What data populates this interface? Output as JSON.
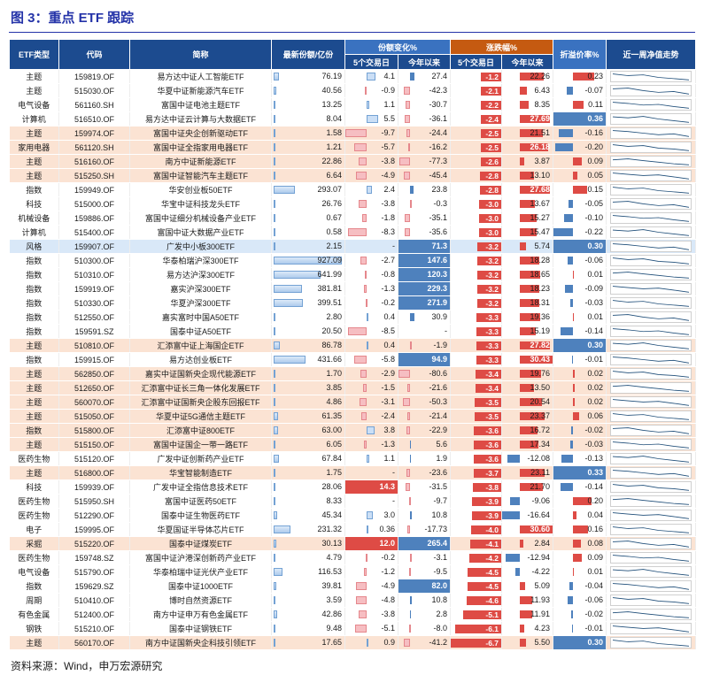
{
  "title": "图 3：重点 ETF 跟踪",
  "source": "资料来源：Wind，申万宏源研究",
  "colors": {
    "title_blue": "#2433A8",
    "header_navy": "#1C4B8F",
    "share_change_band_blue": "#3A72C0",
    "price_change_band_orange": "#C55A11",
    "row_highlight_peach": "#FBE3D3",
    "row_highlight_blue": "#D9E8F8",
    "bar_positive_light_blue": "#CBDFF6",
    "bar_negative_pink": "#F6BEC2",
    "bar_up_red": "#DE4B45",
    "bar_down_blue": "#4E81BD",
    "sparkline_navy": "#1F4E79"
  },
  "chart_data": {
    "type": "table",
    "title": "重点 ETF 跟踪",
    "headers": {
      "etf_type": "ETF类型",
      "code": "代码",
      "short_name": "简称",
      "latest_shares": "最新份额/亿份",
      "share_change_group": "份额变化%",
      "price_change_group": "涨跌幅%",
      "premium_discount": "折溢价率%",
      "weekly_nav_trend": "近一周净值走势",
      "sub_5d": "5个交易日",
      "sub_ytd": "今年以来"
    },
    "rows": [
      {
        "type": "主题",
        "code": "159819.OF",
        "name": "易方达中证人工智能ETF",
        "shares": "76.19",
        "sc5": "4.1",
        "scy": "27.4",
        "pc5": "-1.2",
        "pcy": "22.26",
        "prem": "0.23",
        "hl": "",
        "trend": [
          5,
          4.3,
          4.6,
          3.6,
          3.1,
          2.6
        ]
      },
      {
        "type": "主题",
        "code": "515030.OF",
        "name": "华夏中证新能源汽车ETF",
        "shares": "40.56",
        "sc5": "-0.9",
        "scy": "-42.3",
        "pc5": "-2.1",
        "pcy": "6.43",
        "prem": "-0.07",
        "hl": "",
        "trend": [
          4.7,
          5,
          4.1,
          3.5,
          3.8,
          2.9
        ]
      },
      {
        "type": "电气设备",
        "code": "561160.SH",
        "name": "富国中证电池主题ETF",
        "shares": "13.25",
        "sc5": "1.1",
        "scy": "-30.7",
        "pc5": "-2.2",
        "pcy": "8.35",
        "prem": "0.11",
        "hl": "",
        "trend": [
          5,
          4.5,
          3.8,
          4.1,
          3.2,
          2.5
        ]
      },
      {
        "type": "计算机",
        "code": "516510.OF",
        "name": "易方达中证云计算与大数据ETF",
        "shares": "8.04",
        "sc5": "5.5",
        "scy": "-36.1",
        "pc5": "-2.4",
        "pcy": "27.69",
        "prem": "0.36",
        "hl": "",
        "trend": [
          4.6,
          4.2,
          4.8,
          3.7,
          3,
          2.3
        ]
      },
      {
        "type": "主题",
        "code": "159974.OF",
        "name": "富国中证央企创新驱动ETF",
        "shares": "1.58",
        "sc5": "-9.7",
        "scy": "-24.4",
        "pc5": "-2.5",
        "pcy": "21.51",
        "prem": "-0.16",
        "hl": "peach",
        "trend": [
          5,
          4.6,
          4,
          3.4,
          3.7,
          2.7
        ]
      },
      {
        "type": "家用电器",
        "code": "561120.SH",
        "name": "富国中证全指家用电器ETF",
        "shares": "1.21",
        "sc5": "-5.7",
        "scy": "-16.2",
        "pc5": "-2.5",
        "pcy": "26.18",
        "prem": "-0.20",
        "hl": "peach",
        "trend": [
          4.8,
          4.1,
          4.4,
          3.3,
          2.9,
          2.2
        ]
      },
      {
        "type": "主题",
        "code": "516160.OF",
        "name": "南方中证新能源ETF",
        "shares": "22.86",
        "sc5": "-3.8",
        "scy": "-77.3",
        "pc5": "-2.6",
        "pcy": "3.87",
        "prem": "0.09",
        "hl": "peach",
        "trend": [
          4.5,
          4.9,
          4.2,
          3.6,
          3,
          2.6
        ]
      },
      {
        "type": "主题",
        "code": "515250.SH",
        "name": "富国中证智能汽车主题ETF",
        "shares": "6.64",
        "sc5": "-4.9",
        "scy": "-45.4",
        "pc5": "-2.8",
        "pcy": "13.10",
        "prem": "0.05",
        "hl": "peach",
        "trend": [
          5,
          4.4,
          3.9,
          4.2,
          3.3,
          2.4
        ]
      },
      {
        "type": "指数",
        "code": "159949.OF",
        "name": "华安创业板50ETF",
        "shares": "293.07",
        "sc5": "2.4",
        "scy": "23.8",
        "pc5": "-2.8",
        "pcy": "27.68",
        "prem": "0.15",
        "hl": "",
        "trend": [
          5,
          4.3,
          4.6,
          3.6,
          3.1,
          2.6
        ]
      },
      {
        "type": "科技",
        "code": "515000.OF",
        "name": "华宝中证科技龙头ETF",
        "shares": "26.76",
        "sc5": "-3.8",
        "scy": "-0.3",
        "pc5": "-3.0",
        "pcy": "13.67",
        "prem": "-0.05",
        "hl": "",
        "trend": [
          4.7,
          5,
          4.1,
          3.5,
          3.8,
          2.9
        ]
      },
      {
        "type": "机械设备",
        "code": "159886.OF",
        "name": "富国中证细分机械设备产业ETF",
        "shares": "0.67",
        "sc5": "-1.8",
        "scy": "-35.1",
        "pc5": "-3.0",
        "pcy": "15.27",
        "prem": "-0.10",
        "hl": "",
        "trend": [
          5,
          4.5,
          3.8,
          4.1,
          3.2,
          2.5
        ]
      },
      {
        "type": "计算机",
        "code": "515400.OF",
        "name": "富国中证大数据产业ETF",
        "shares": "0.58",
        "sc5": "-8.3",
        "scy": "-35.6",
        "pc5": "-3.0",
        "pcy": "15.47",
        "prem": "-0.22",
        "hl": "",
        "trend": [
          4.6,
          4.2,
          4.8,
          3.7,
          3,
          2.3
        ]
      },
      {
        "type": "风格",
        "code": "159907.OF",
        "name": "广发中小板300ETF",
        "shares": "2.15",
        "sc5": "-",
        "scy": "71.3",
        "pc5": "-3.2",
        "pcy": "5.74",
        "prem": "0.30",
        "hl": "blue",
        "trend": [
          5,
          4.6,
          4,
          3.4,
          3.7,
          2.7
        ]
      },
      {
        "type": "指数",
        "code": "510300.OF",
        "name": "华泰柏瑞沪深300ETF",
        "shares": "927.09",
        "sc5": "-2.7",
        "scy": "147.6",
        "pc5": "-3.2",
        "pcy": "18.28",
        "prem": "-0.06",
        "hl": "",
        "trend": [
          4.8,
          4.1,
          4.4,
          3.3,
          2.9,
          2.2
        ]
      },
      {
        "type": "指数",
        "code": "510310.OF",
        "name": "易方达沪深300ETF",
        "shares": "641.99",
        "sc5": "-0.8",
        "scy": "120.3",
        "pc5": "-3.2",
        "pcy": "18.65",
        "prem": "0.01",
        "hl": "",
        "trend": [
          4.5,
          4.9,
          4.2,
          3.6,
          3,
          2.6
        ]
      },
      {
        "type": "指数",
        "code": "159919.OF",
        "name": "嘉实沪深300ETF",
        "shares": "381.81",
        "sc5": "-1.3",
        "scy": "229.3",
        "pc5": "-3.2",
        "pcy": "18.23",
        "prem": "-0.09",
        "hl": "",
        "trend": [
          5,
          4.4,
          3.9,
          4.2,
          3.3,
          2.4
        ]
      },
      {
        "type": "指数",
        "code": "510330.OF",
        "name": "华夏沪深300ETF",
        "shares": "399.51",
        "sc5": "-0.2",
        "scy": "271.9",
        "pc5": "-3.2",
        "pcy": "18.31",
        "prem": "-0.03",
        "hl": "",
        "trend": [
          5,
          4.3,
          4.6,
          3.6,
          3.1,
          2.6
        ]
      },
      {
        "type": "指数",
        "code": "512550.OF",
        "name": "嘉实富时中国A50ETF",
        "shares": "2.80",
        "sc5": "0.4",
        "scy": "30.9",
        "pc5": "-3.3",
        "pcy": "19.36",
        "prem": "0.01",
        "hl": "",
        "trend": [
          4.7,
          5,
          4.1,
          3.5,
          3.8,
          2.9
        ]
      },
      {
        "type": "指数",
        "code": "159591.SZ",
        "name": "国泰中证A50ETF",
        "shares": "20.50",
        "sc5": "-8.5",
        "scy": "-",
        "pc5": "-3.3",
        "pcy": "15.19",
        "prem": "-0.14",
        "hl": "",
        "trend": [
          5,
          4.5,
          3.8,
          4.1,
          3.2,
          2.5
        ]
      },
      {
        "type": "主题",
        "code": "510810.OF",
        "name": "汇添富中证上海国企ETF",
        "shares": "86.78",
        "sc5": "0.4",
        "scy": "-1.9",
        "pc5": "-3.3",
        "pcy": "27.82",
        "prem": "0.30",
        "hl": "peach",
        "trend": [
          4.6,
          4.2,
          4.8,
          3.7,
          3,
          2.3
        ]
      },
      {
        "type": "指数",
        "code": "159915.OF",
        "name": "易方达创业板ETF",
        "shares": "431.66",
        "sc5": "-5.8",
        "scy": "94.9",
        "pc5": "-3.3",
        "pcy": "30.43",
        "prem": "-0.01",
        "hl": "",
        "trend": [
          5,
          4.6,
          4,
          3.4,
          3.7,
          2.7
        ]
      },
      {
        "type": "主题",
        "code": "562850.OF",
        "name": "嘉实中证国新央企现代能源ETF",
        "shares": "1.70",
        "sc5": "-2.9",
        "scy": "-80.6",
        "pc5": "-3.4",
        "pcy": "19.76",
        "prem": "0.02",
        "hl": "peach",
        "trend": [
          4.8,
          4.1,
          4.4,
          3.3,
          2.9,
          2.2
        ]
      },
      {
        "type": "主题",
        "code": "512650.OF",
        "name": "汇添富中证长三角一体化发展ETF",
        "shares": "3.85",
        "sc5": "-1.5",
        "scy": "-21.6",
        "pc5": "-3.4",
        "pcy": "13.50",
        "prem": "0.02",
        "hl": "peach",
        "trend": [
          4.5,
          4.9,
          4.2,
          3.6,
          3,
          2.6
        ]
      },
      {
        "type": "主题",
        "code": "560070.OF",
        "name": "汇添富中证国新央企股东回报ETF",
        "shares": "4.86",
        "sc5": "-3.1",
        "scy": "-50.3",
        "pc5": "-3.5",
        "pcy": "20.54",
        "prem": "0.02",
        "hl": "peach",
        "trend": [
          5,
          4.4,
          3.9,
          4.2,
          3.3,
          2.4
        ]
      },
      {
        "type": "主题",
        "code": "515050.OF",
        "name": "华夏中证5G通信主题ETF",
        "shares": "61.35",
        "sc5": "-2.4",
        "scy": "-21.4",
        "pc5": "-3.5",
        "pcy": "23.37",
        "prem": "0.06",
        "hl": "peach",
        "trend": [
          5,
          4.3,
          4.6,
          3.6,
          3.1,
          2.6
        ]
      },
      {
        "type": "指数",
        "code": "515800.OF",
        "name": "汇添富中证800ETF",
        "shares": "63.00",
        "sc5": "3.8",
        "scy": "-22.9",
        "pc5": "-3.6",
        "pcy": "16.72",
        "prem": "-0.02",
        "hl": "peach",
        "trend": [
          4.7,
          5,
          4.1,
          3.5,
          3.8,
          2.9
        ]
      },
      {
        "type": "主题",
        "code": "515150.OF",
        "name": "富国中证国企一带一路ETF",
        "shares": "6.05",
        "sc5": "-1.3",
        "scy": "5.6",
        "pc5": "-3.6",
        "pcy": "17.34",
        "prem": "-0.03",
        "hl": "peach",
        "trend": [
          5,
          4.5,
          3.8,
          4.1,
          3.2,
          2.5
        ]
      },
      {
        "type": "医药生物",
        "code": "515120.OF",
        "name": "广发中证创新药产业ETF",
        "shares": "67.84",
        "sc5": "1.1",
        "scy": "1.9",
        "pc5": "-3.6",
        "pcy": "-12.08",
        "prem": "-0.13",
        "hl": "",
        "trend": [
          4.6,
          4.2,
          4.8,
          3.7,
          3,
          2.3
        ]
      },
      {
        "type": "主题",
        "code": "516800.OF",
        "name": "华宝智能制造ETF",
        "shares": "1.75",
        "sc5": "-",
        "scy": "-23.6",
        "pc5": "-3.7",
        "pcy": "23.11",
        "prem": "0.33",
        "hl": "peach",
        "trend": [
          5,
          4.6,
          4,
          3.4,
          3.7,
          2.7
        ]
      },
      {
        "type": "科技",
        "code": "159939.OF",
        "name": "广发中证全指信息技术ETF",
        "shares": "28.06",
        "sc5": "14.3",
        "scy": "-31.5",
        "pc5": "-3.8",
        "pcy": "21.70",
        "prem": "-0.14",
        "hl": "",
        "trend": [
          4.8,
          4.1,
          4.4,
          3.3,
          2.9,
          2.2
        ]
      },
      {
        "type": "医药生物",
        "code": "515950.SH",
        "name": "富国中证医药50ETF",
        "shares": "8.33",
        "sc5": "-",
        "scy": "-9.7",
        "pc5": "-3.9",
        "pcy": "-9.06",
        "prem": "0.20",
        "hl": "",
        "trend": [
          4.5,
          4.9,
          4.2,
          3.6,
          3,
          2.6
        ]
      },
      {
        "type": "医药生物",
        "code": "512290.OF",
        "name": "国泰中证生物医药ETF",
        "shares": "45.34",
        "sc5": "3.0",
        "scy": "10.8",
        "pc5": "-3.9",
        "pcy": "-16.64",
        "prem": "0.04",
        "hl": "",
        "trend": [
          5,
          4.4,
          3.9,
          4.2,
          3.3,
          2.4
        ]
      },
      {
        "type": "电子",
        "code": "159995.OF",
        "name": "华夏国证半导体芯片ETF",
        "shares": "231.32",
        "sc5": "0.36",
        "scy": "-17.73",
        "pc5": "-4.0",
        "pcy": "30.60",
        "prem": "0.16",
        "hl": "",
        "trend": [
          5,
          4.3,
          4.6,
          3.6,
          3.1,
          2.6
        ]
      },
      {
        "type": "采掘",
        "code": "515220.OF",
        "name": "国泰中证煤炭ETF",
        "shares": "30.13",
        "sc5": "12.0",
        "scy": "265.4",
        "pc5": "-4.1",
        "pcy": "2.84",
        "prem": "0.08",
        "hl": "peach",
        "trend": [
          4.7,
          5,
          4.1,
          3.5,
          3.8,
          2.9
        ]
      },
      {
        "type": "医药生物",
        "code": "159748.SZ",
        "name": "富国中证沪港深创新药产业ETF",
        "shares": "4.79",
        "sc5": "-0.2",
        "scy": "-3.1",
        "pc5": "-4.2",
        "pcy": "-12.94",
        "prem": "0.09",
        "hl": "",
        "trend": [
          5,
          4.5,
          3.8,
          4.1,
          3.2,
          2.5
        ]
      },
      {
        "type": "电气设备",
        "code": "515790.OF",
        "name": "华泰柏瑞中证光伏产业ETF",
        "shares": "116.53",
        "sc5": "-1.2",
        "scy": "-9.5",
        "pc5": "-4.5",
        "pcy": "-4.22",
        "prem": "0.01",
        "hl": "",
        "trend": [
          4.6,
          4.2,
          4.8,
          3.7,
          3,
          2.3
        ]
      },
      {
        "type": "指数",
        "code": "159629.SZ",
        "name": "国泰中证1000ETF",
        "shares": "39.81",
        "sc5": "-4.9",
        "scy": "82.0",
        "pc5": "-4.5",
        "pcy": "5.09",
        "prem": "-0.04",
        "hl": "",
        "trend": [
          5,
          4.6,
          4,
          3.4,
          3.7,
          2.7
        ]
      },
      {
        "type": "周期",
        "code": "510410.OF",
        "name": "博时自然资源ETF",
        "shares": "3.59",
        "sc5": "-4.8",
        "scy": "10.8",
        "pc5": "-4.6",
        "pcy": "11.93",
        "prem": "-0.06",
        "hl": "",
        "trend": [
          4.8,
          4.1,
          4.4,
          3.3,
          2.9,
          2.2
        ]
      },
      {
        "type": "有色金属",
        "code": "512400.OF",
        "name": "南方中证申万有色金属ETF",
        "shares": "42.86",
        "sc5": "-3.8",
        "scy": "2.8",
        "pc5": "-5.1",
        "pcy": "11.91",
        "prem": "-0.02",
        "hl": "",
        "trend": [
          4.5,
          4.9,
          4.2,
          3.6,
          3,
          2.6
        ]
      },
      {
        "type": "钢铁",
        "code": "515210.OF",
        "name": "国泰中证钢铁ETF",
        "shares": "9.48",
        "sc5": "-5.1",
        "scy": "-8.0",
        "pc5": "-6.1",
        "pcy": "4.23",
        "prem": "-0.01",
        "hl": "",
        "trend": [
          5,
          4.4,
          3.9,
          4.2,
          3.3,
          2.4
        ]
      },
      {
        "type": "主题",
        "code": "560170.OF",
        "name": "南方中证国新央企科技引领ETF",
        "shares": "17.65",
        "sc5": "0.9",
        "scy": "-41.2",
        "pc5": "-6.7",
        "pcy": "5.50",
        "prem": "0.30",
        "hl": "peach",
        "trend": [
          5,
          4.3,
          4.6,
          3.6,
          3.1,
          2.6
        ]
      }
    ]
  }
}
